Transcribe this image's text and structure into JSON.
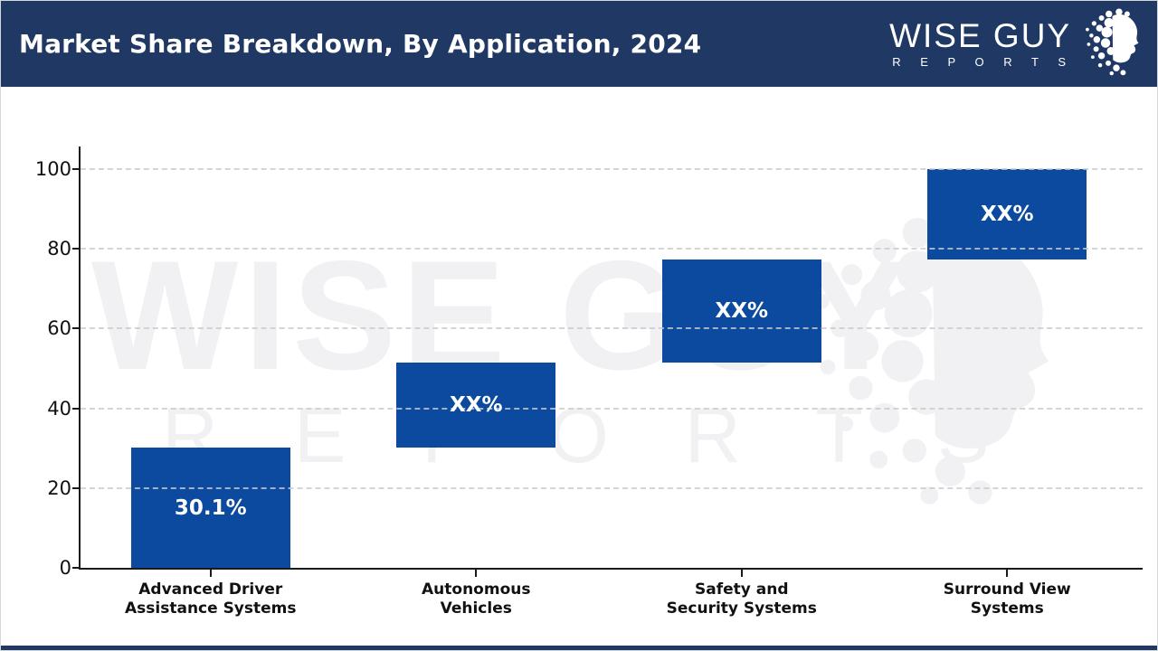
{
  "header": {
    "title": "Market Share Breakdown, By Application, 2024",
    "bg_color": "#1f3864",
    "text_color": "#ffffff",
    "logo": {
      "name": "WISE GUY",
      "tagline": "R E P O R T S"
    }
  },
  "watermark": {
    "line1": "WISE GUY",
    "line2": "R E P O R T S"
  },
  "chart_data": {
    "type": "bar",
    "variant": "waterfall",
    "title": "Market Share Breakdown, By Application, 2024",
    "categories": [
      "Advanced Driver Assistance Systems",
      "Autonomous Vehicles",
      "Safety and Security Systems",
      "Surround View Systems"
    ],
    "category_lines": [
      [
        "Advanced Driver",
        "Assistance Systems"
      ],
      [
        "Autonomous",
        "Vehicles"
      ],
      [
        "Safety and",
        "Security Systems"
      ],
      [
        "Surround View",
        "Systems"
      ]
    ],
    "series": [
      {
        "name": "Market share",
        "segments": [
          {
            "category": "Advanced Driver Assistance Systems",
            "start": 0,
            "end": 30.1,
            "label": "30.1%"
          },
          {
            "category": "Autonomous Vehicles",
            "start": 30.1,
            "end": 51.4,
            "label": "XX%"
          },
          {
            "category": "Safety and Security Systems",
            "start": 51.4,
            "end": 77.4,
            "label": "XX%"
          },
          {
            "category": "Surround View Systems",
            "start": 77.4,
            "end": 100,
            "label": "XX%"
          }
        ]
      }
    ],
    "ylim": [
      0,
      100
    ],
    "yticks": [
      0,
      20,
      40,
      60,
      80,
      100
    ],
    "xlabel": "",
    "ylabel": "",
    "grid": "horizontal-dashed",
    "legend": false,
    "bar_color": "#0b4a9e",
    "bar_label_color": "#ffffff",
    "axis_color": "#1a1a1a"
  },
  "footer": {
    "bar_color": "#1f3864"
  }
}
